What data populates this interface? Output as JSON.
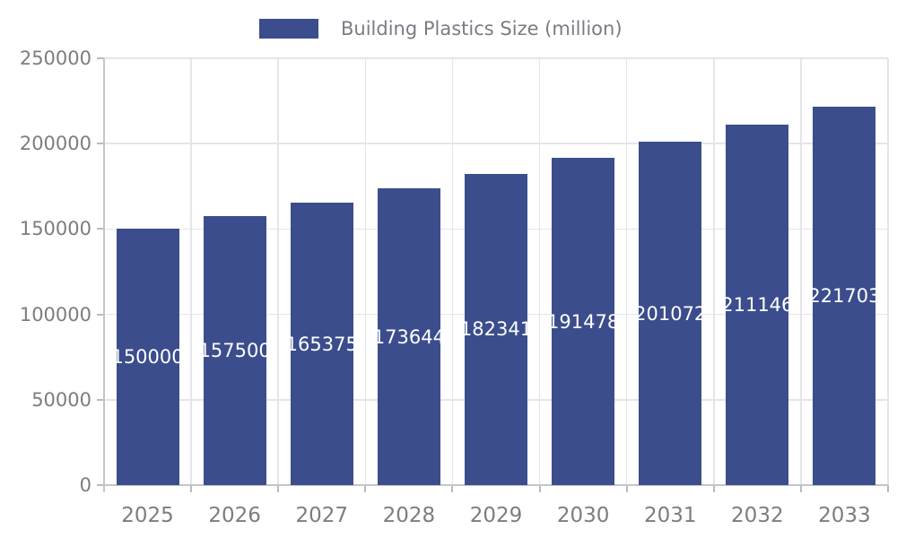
{
  "chart_data": {
    "type": "bar",
    "title": "",
    "categories": [
      "2025",
      "2026",
      "2027",
      "2028",
      "2029",
      "2030",
      "2031",
      "2032",
      "2033"
    ],
    "series": [
      {
        "name": "Building Plastics Size (million)",
        "values": [
          150000,
          157500,
          165375,
          173644,
          182341,
          191478,
          201072,
          211146,
          221703
        ]
      }
    ],
    "xlabel": "",
    "ylabel": "",
    "ylim": [
      0,
      250000
    ],
    "yticks": [
      0,
      50000,
      100000,
      150000,
      200000,
      250000
    ],
    "grid": "both",
    "legend_position": "top-center",
    "bar_labels_visible": true
  },
  "legend": {
    "label": "Building Plastics Size (million)"
  },
  "colors": {
    "bar": "#3b4d8c",
    "bar_value_text": "#ffffff",
    "grid_line": "#e4e4ea",
    "axis_line": "#c3c5cb",
    "tick_mark": "#b9bbc1",
    "axis_label_text": "#7d7d7d",
    "legend_text": "#7a7c84",
    "background": "#ffffff"
  }
}
